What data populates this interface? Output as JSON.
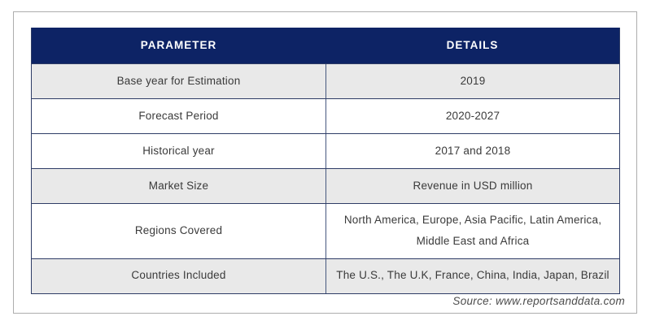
{
  "chart_data": {
    "type": "table",
    "title": "",
    "columns": [
      "PARAMETER",
      "DETAILS"
    ],
    "rows": [
      {
        "parameter": "Base year for Estimation",
        "details": "2019"
      },
      {
        "parameter": "Forecast Period",
        "details": "2020-2027"
      },
      {
        "parameter": "Historical year",
        "details": "2017 and 2018"
      },
      {
        "parameter": "Market Size",
        "details": "Revenue in USD million"
      },
      {
        "parameter": "Regions Covered",
        "details": "North America, Europe, Asia Pacific, Latin America, Middle East and Africa"
      },
      {
        "parameter": "Countries Included",
        "details": "The U.S., The U.K, France, China, India, Japan, Brazil"
      }
    ],
    "shaded_row_indices": [
      0,
      3,
      5
    ],
    "legend_position": "none",
    "grid": "on"
  },
  "footer": {
    "source": "Source: www.reportsanddata.com"
  },
  "colors": {
    "header_bg": "#0d2365",
    "header_text": "#ffffff",
    "row_shaded_bg": "#e9e9e9",
    "row_plain_bg": "#ffffff",
    "border_dark": "#2e3c66",
    "divider": "#46587e",
    "frame_border": "#adadad",
    "body_text": "#3a3a3a",
    "source_text": "#4b4b4b"
  }
}
